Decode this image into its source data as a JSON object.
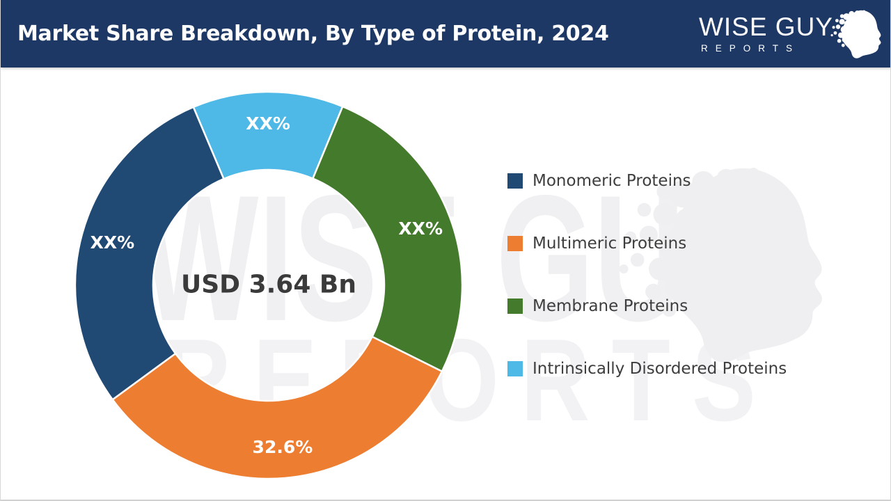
{
  "header": {
    "title": "Market Share Breakdown, By Type of Protein, 2024",
    "logo": {
      "line1": "WISE GUY",
      "line2": "REPORTS"
    }
  },
  "watermark": {
    "line1": "WISE GUY",
    "line2": "REPORTS"
  },
  "chart_data": {
    "type": "donut",
    "title": "Market Share Breakdown, By Type of Protein, 2024",
    "center_label": "USD 3.64 Bn",
    "start_angle_deg": -22.9,
    "direction": "clockwise",
    "outer_radius_px": 278,
    "inner_radius_px": 166,
    "label_radius_px": 233,
    "segments": [
      {
        "name": "Intrinsically Disordered Proteins",
        "display_label": "XX%",
        "value_pct": 12.6,
        "color": "#4eb8e6"
      },
      {
        "name": "Membrane Proteins",
        "display_label": "XX%",
        "value_pct": 26.1,
        "color": "#437a2b"
      },
      {
        "name": "Multimeric Proteins",
        "display_label": "32.6%",
        "value_pct": 32.6,
        "color": "#ec7d31"
      },
      {
        "name": "Monomeric Proteins",
        "display_label": "XX%",
        "value_pct": 28.7,
        "color": "#204a73"
      }
    ],
    "legend": [
      {
        "label": "Monomeric Proteins",
        "color": "#204a73"
      },
      {
        "label": "Multimeric Proteins",
        "color": "#ec7d31"
      },
      {
        "label": "Membrane Proteins",
        "color": "#437a2b"
      },
      {
        "label": "Intrinsically Disordered Proteins",
        "color": "#4eb8e6"
      }
    ]
  },
  "colors": {
    "header_bg": "#1e3866",
    "segment_border": "#ffffff",
    "center_text": "#3a3a3a",
    "legend_text": "#3d3d3d",
    "watermark": "#f0f0f2"
  }
}
